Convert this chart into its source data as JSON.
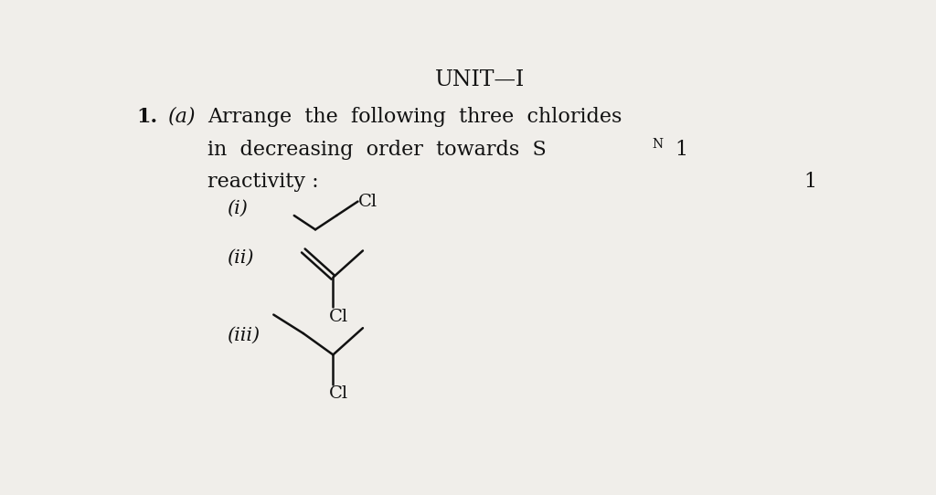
{
  "background_color": "#f0eeea",
  "title": "UNIT—I",
  "title_fontsize": 17,
  "question_number": "1.",
  "question_part": "(a)",
  "question_text_line1": "Arrange  the  following  three  chlorides",
  "question_text_line2": "in  decreasing  order  towards  S",
  "question_text_line2_N": "N",
  "question_text_line2_1": "1",
  "question_text_line3": "reactivity :",
  "marks": "1",
  "label_i": "(i)",
  "label_ii": "(ii)",
  "label_iii": "(iii)",
  "text_color": "#111111",
  "font_family": "serif",
  "fontsize_main": 16,
  "fontsize_label": 15,
  "fontsize_cl": 14
}
